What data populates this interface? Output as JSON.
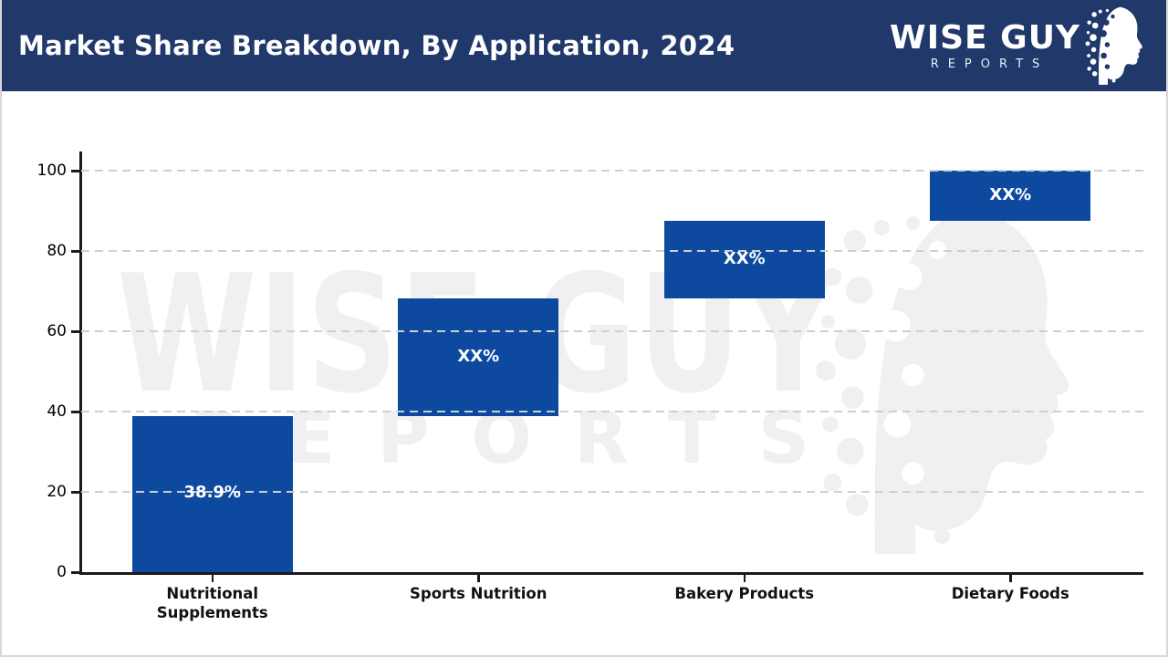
{
  "header": {
    "title": "Market Share Breakdown, By Application, 2024",
    "logo": {
      "name": "WISE GUY",
      "sub": "REPORTS"
    }
  },
  "watermark": {
    "line1": "WISE GUY",
    "line2": "REPORTS"
  },
  "chart_data": {
    "type": "bar",
    "subtype": "waterfall",
    "title": "Market Share Breakdown, By Application, 2024",
    "categories": [
      "Nutritional Supplements",
      "Sports Nutrition",
      "Bakery Products",
      "Dietary Foods"
    ],
    "segments": [
      {
        "category": "Nutritional Supplements",
        "start": 0,
        "end": 38.9,
        "label": "38.9%"
      },
      {
        "category": "Sports Nutrition",
        "start": 38.9,
        "end": 68.1,
        "label": "XX%"
      },
      {
        "category": "Bakery Products",
        "start": 68.1,
        "end": 87.5,
        "label": "XX%"
      },
      {
        "category": "Dietary Foods",
        "start": 87.5,
        "end": 100,
        "label": "XX%"
      }
    ],
    "yticks": [
      0,
      20,
      40,
      60,
      80,
      100
    ],
    "ylim": [
      0,
      104
    ],
    "xlabel": "",
    "ylabel": "",
    "grid": "horizontal-dashed",
    "legend": "none",
    "bar_color": "#0d4a9f",
    "bar_label_color": "#ffffff"
  },
  "colors": {
    "header_bg": "#21386b",
    "bar": "#0d4a9f",
    "grid": "#d0d0d0",
    "axis": "#1a1a1a",
    "watermark": "#f0f0f2",
    "frame_border": "#d8d8d8"
  }
}
